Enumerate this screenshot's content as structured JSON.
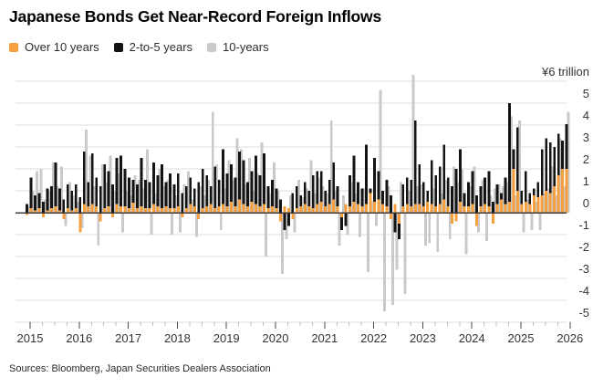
{
  "title": "Japanese Bonds Get Near-Record Foreign Inflows",
  "legend": {
    "items": [
      {
        "label": "Over 10 years",
        "color": "#f79f3d"
      },
      {
        "label": "2-to-5 years",
        "color": "#141414"
      },
      {
        "label": "10-years",
        "color": "#c9c9c9"
      }
    ]
  },
  "axis": {
    "y_labels": [
      "¥6 trillion",
      "5",
      "4",
      "3",
      "2",
      "1",
      "0",
      "-1",
      "-2",
      "-3",
      "-4",
      "-5"
    ],
    "y_values": [
      6,
      5,
      4,
      3,
      2,
      1,
      0,
      -1,
      -2,
      -3,
      -4,
      -5
    ],
    "x_labels": [
      "2015",
      "2016",
      "2017",
      "2018",
      "2019",
      "2020",
      "2021",
      "2022",
      "2023",
      "2024",
      "2025",
      "2026"
    ]
  },
  "source": "Sources: Bloomberg, Japan Securities Dealers Association",
  "chart_data": {
    "type": "bar",
    "title": "Japanese Bonds Get Near-Record Foreign Inflows",
    "unit": "¥ trillion",
    "ylim": [
      -5,
      6
    ],
    "grid": true,
    "legend_position": "top",
    "x_months": {
      "start": "2015-01",
      "end": "2026-01",
      "frequency": "monthly",
      "count": 133
    },
    "x_year_ticks": [
      2015,
      2016,
      2017,
      2018,
      2019,
      2020,
      2021,
      2022,
      2023,
      2024,
      2025,
      2026
    ],
    "series": [
      {
        "name": "Over 10 years",
        "color": "#f79f3d",
        "values": [
          -0.1,
          0.2,
          0.1,
          0.2,
          -0.2,
          0.1,
          0.2,
          0.3,
          0.1,
          -0.3,
          0.2,
          0.1,
          0.2,
          -0.9,
          0.4,
          0.3,
          0.4,
          0.3,
          -0.4,
          0.2,
          0.3,
          -0.2,
          0.4,
          0.3,
          0.3,
          0.2,
          0.45,
          0.2,
          0.3,
          0.2,
          0.2,
          0.4,
          0.3,
          0.2,
          0.3,
          0.2,
          0.2,
          0.3,
          -0.2,
          0.2,
          0.4,
          0.3,
          -0.3,
          0.2,
          0.3,
          0.4,
          0.2,
          0.3,
          0.4,
          0.3,
          0.5,
          0.3,
          0.6,
          0.4,
          0.3,
          0.5,
          0.4,
          0.3,
          0.4,
          0.2,
          0.3,
          0.2,
          -0.4,
          0.3,
          0.2,
          -0.3,
          0.2,
          0.3,
          0.4,
          0.3,
          0.2,
          0.4,
          0.5,
          0.3,
          0.4,
          0.6,
          0.3,
          -0.2,
          0.4,
          0.3,
          0.5,
          0.4,
          0.3,
          0.4,
          0.9,
          0.5,
          0.6,
          0.4,
          0.3,
          -0.3,
          0.4,
          -0.5,
          0.3,
          0.4,
          0.3,
          0.4,
          0.4,
          0.3,
          0.5,
          0.4,
          0.3,
          0.4,
          0.6,
          0.3,
          -0.5,
          -0.4,
          0.5,
          0.3,
          0.3,
          0.4,
          -0.6,
          0.3,
          0.4,
          0.3,
          -0.5,
          0.4,
          0.6,
          0.4,
          0.5,
          2.0,
          1.0,
          0.4,
          0.5,
          0.4,
          0.8,
          0.7,
          0.8,
          1.0,
          0.9,
          1.2,
          1.7,
          2.0,
          2.0
        ]
      },
      {
        "name": "2-to-5 years",
        "color": "#141414",
        "values": [
          0.4,
          1.6,
          0.8,
          0.9,
          0.5,
          1.1,
          1.2,
          2.3,
          1.1,
          0.6,
          1.3,
          1.0,
          1.3,
          0.7,
          2.8,
          1.4,
          2.7,
          1.6,
          1.2,
          2.2,
          1.9,
          1.3,
          2.5,
          2.6,
          2.0,
          1.6,
          1.5,
          1.3,
          2.5,
          1.5,
          1.4,
          2.3,
          1.7,
          2.2,
          1.4,
          1.8,
          1.3,
          1.8,
          0.9,
          1.2,
          1.6,
          1.1,
          1.4,
          2.0,
          1.7,
          1.2,
          2.1,
          1.5,
          2.9,
          1.8,
          2.2,
          1.6,
          2.8,
          2.4,
          1.4,
          1.9,
          2.6,
          1.7,
          2.7,
          1.2,
          1.5,
          1.1,
          0.6,
          -0.8,
          -0.6,
          0.9,
          1.2,
          0.8,
          1.4,
          1.0,
          1.7,
          1.9,
          1.9,
          1.0,
          1.5,
          2.3,
          1.2,
          -0.8,
          -0.6,
          1.7,
          2.6,
          1.4,
          1.1,
          3.1,
          1.1,
          2.5,
          1.9,
          1.0,
          1.5,
          0.8,
          -0.9,
          -1.2,
          1.3,
          1.6,
          1.5,
          4.2,
          2.2,
          1.4,
          1.0,
          2.4,
          1.7,
          2.1,
          3.1,
          1.6,
          1.2,
          2.0,
          2.9,
          0.9,
          1.4,
          1.9,
          0.8,
          1.2,
          1.6,
          1.9,
          0.5,
          1.3,
          0.9,
          1.6,
          5.0,
          2.9,
          3.9,
          1.0,
          1.9,
          0.9,
          1.1,
          1.4,
          2.9,
          3.4,
          3.2,
          3.0,
          3.6,
          3.3,
          4.05
        ]
      },
      {
        "name": "10-years",
        "color": "#c9c9c9",
        "values": [
          0.3,
          1.0,
          1.9,
          2.0,
          0.6,
          1.0,
          2.3,
          1.2,
          2.1,
          -0.6,
          1.4,
          0.8,
          0.5,
          -0.7,
          3.8,
          2.6,
          1.2,
          -1.5,
          2.2,
          1.4,
          2.6,
          1.0,
          1.8,
          -0.9,
          1.0,
          0.8,
          1.7,
          1.5,
          1.1,
          2.9,
          -1.0,
          0.9,
          2.0,
          1.2,
          1.5,
          -1.0,
          0.8,
          -0.9,
          1.3,
          1.9,
          0.6,
          -1.1,
          1.2,
          0.8,
          1.5,
          4.6,
          2.2,
          -0.8,
          1.1,
          2.4,
          1.5,
          3.4,
          2.9,
          1.3,
          2.5,
          1.0,
          1.8,
          3.2,
          -2.0,
          0.9,
          2.3,
          1.0,
          -2.8,
          -1.2,
          0.8,
          -0.9,
          1.5,
          0.7,
          1.1,
          2.4,
          0.9,
          1.6,
          1.2,
          0.9,
          4.2,
          1.0,
          -1.5,
          0.8,
          -1.0,
          1.4,
          0.9,
          -1.1,
          1.1,
          -2.7,
          0.5,
          -0.6,
          5.6,
          -4.5,
          1.2,
          -4.2,
          -2.6,
          1.4,
          -3.7,
          1.0,
          6.3,
          1.2,
          1.3,
          -1.5,
          -1.4,
          1.1,
          -1.8,
          0.9,
          1.5,
          -1.2,
          2.1,
          1.4,
          2.0,
          -1.9,
          1.2,
          2.1,
          -0.9,
          1.5,
          -1.3,
          0.8,
          1.1,
          1.3,
          1.2,
          1.4,
          4.4,
          0.8,
          4.2,
          -0.9,
          0.6,
          -0.8,
          0.5,
          -0.8,
          0.9,
          1.1,
          2.1,
          0.8,
          3.4,
          1.2,
          4.6
        ]
      }
    ]
  }
}
